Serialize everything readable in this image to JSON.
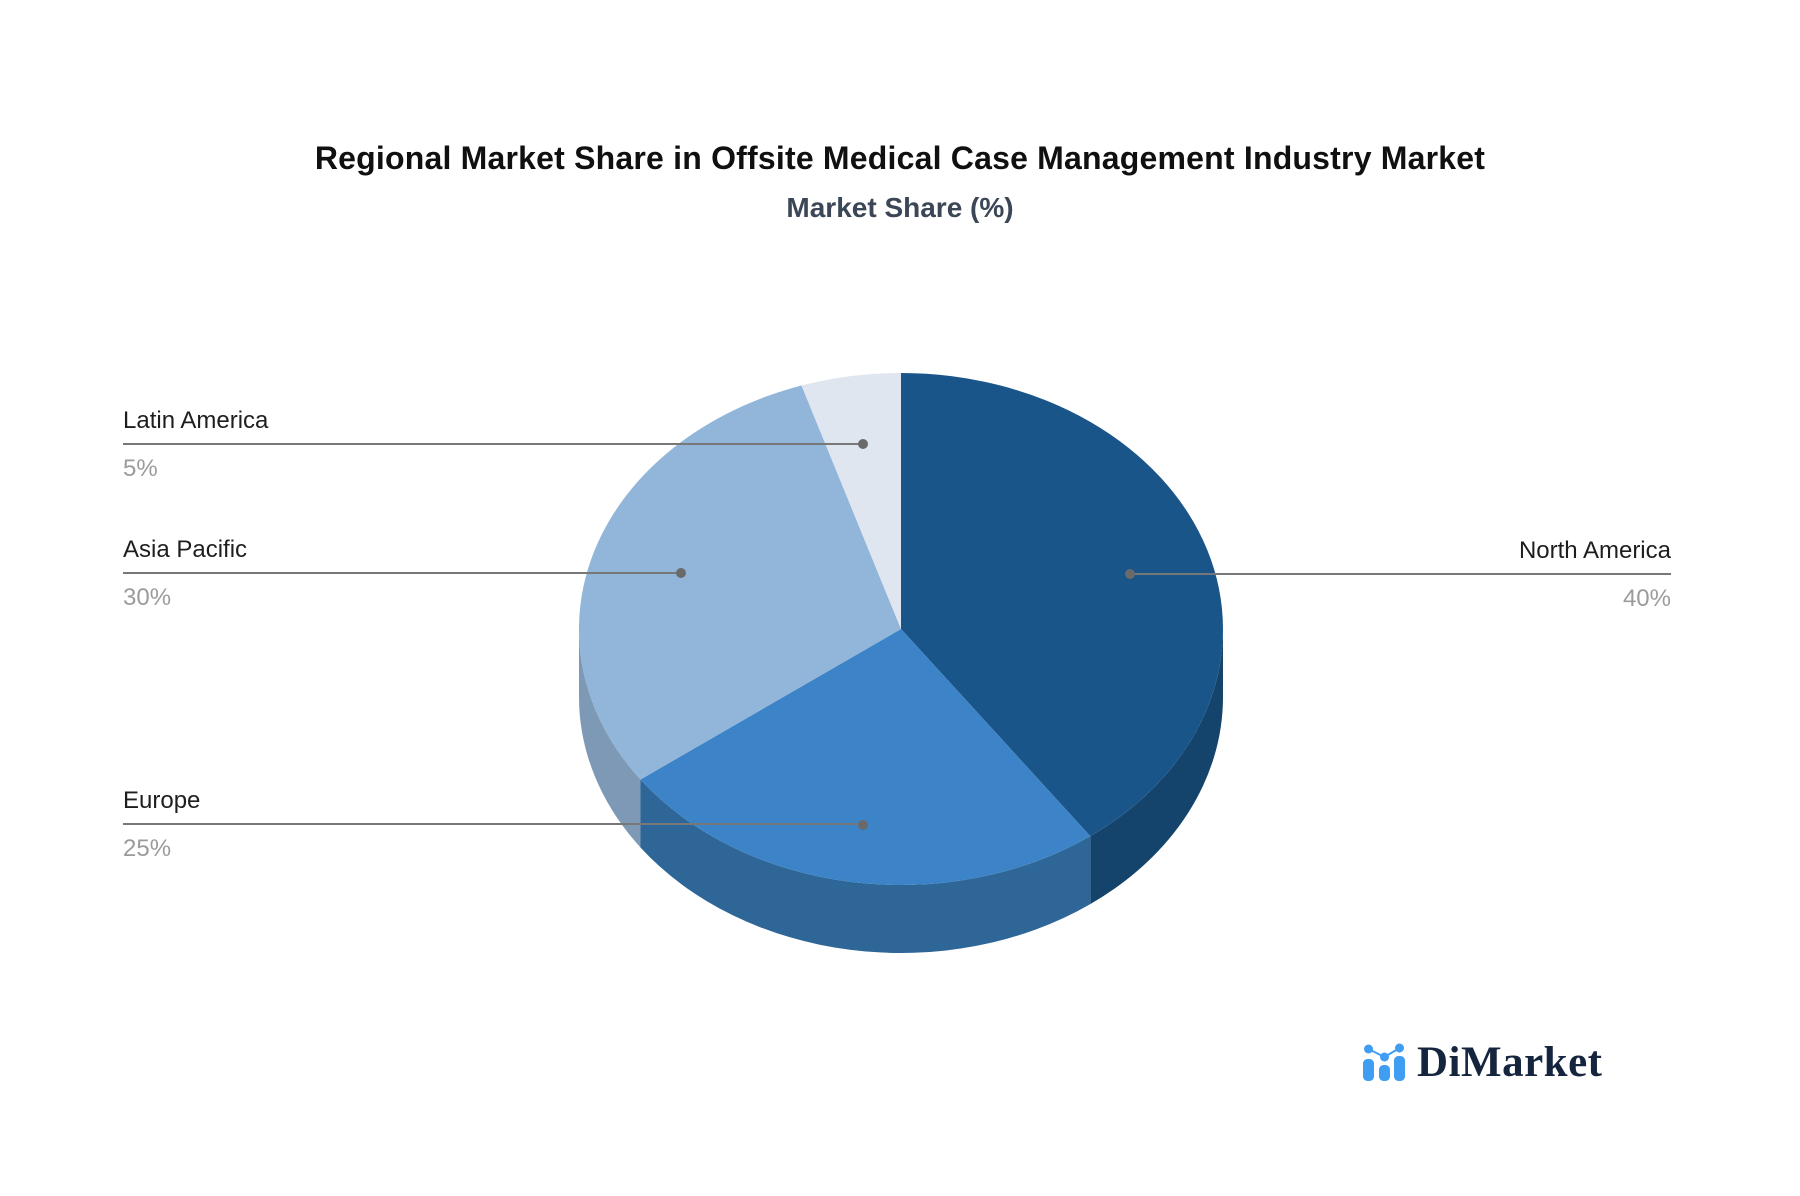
{
  "chart_data": {
    "type": "pie",
    "style": "3d",
    "title": "Regional Market Share in Offsite Medical Case Management Industry Market",
    "subtitle": "Market Share (%)",
    "unit": "%",
    "start_angle_deg": 0,
    "direction": "clockwise",
    "legend_position": "none",
    "labels": "leader-line-callouts",
    "slices": [
      {
        "name": "North America",
        "value": 40,
        "percent_label": "40%",
        "color": "#1a5589",
        "side_color": "#14436b"
      },
      {
        "name": "Europe",
        "value": 25,
        "percent_label": "25%",
        "color": "#3c84c7",
        "side_color": "#2e6698"
      },
      {
        "name": "Asia Pacific",
        "value": 30,
        "percent_label": "30%",
        "color": "#92b5da",
        "side_color": "#7d99b5"
      },
      {
        "name": "Latin America",
        "value": 5,
        "percent_label": "5%",
        "color": "#dfe6f0",
        "side_color": "#c9d2df"
      }
    ]
  },
  "branding": {
    "logo_text": "DiMarket",
    "logo_icon": "bar-line-chart-icon",
    "logo_text_color": "#16253e",
    "logo_icon_color": "#3f9ef2"
  }
}
